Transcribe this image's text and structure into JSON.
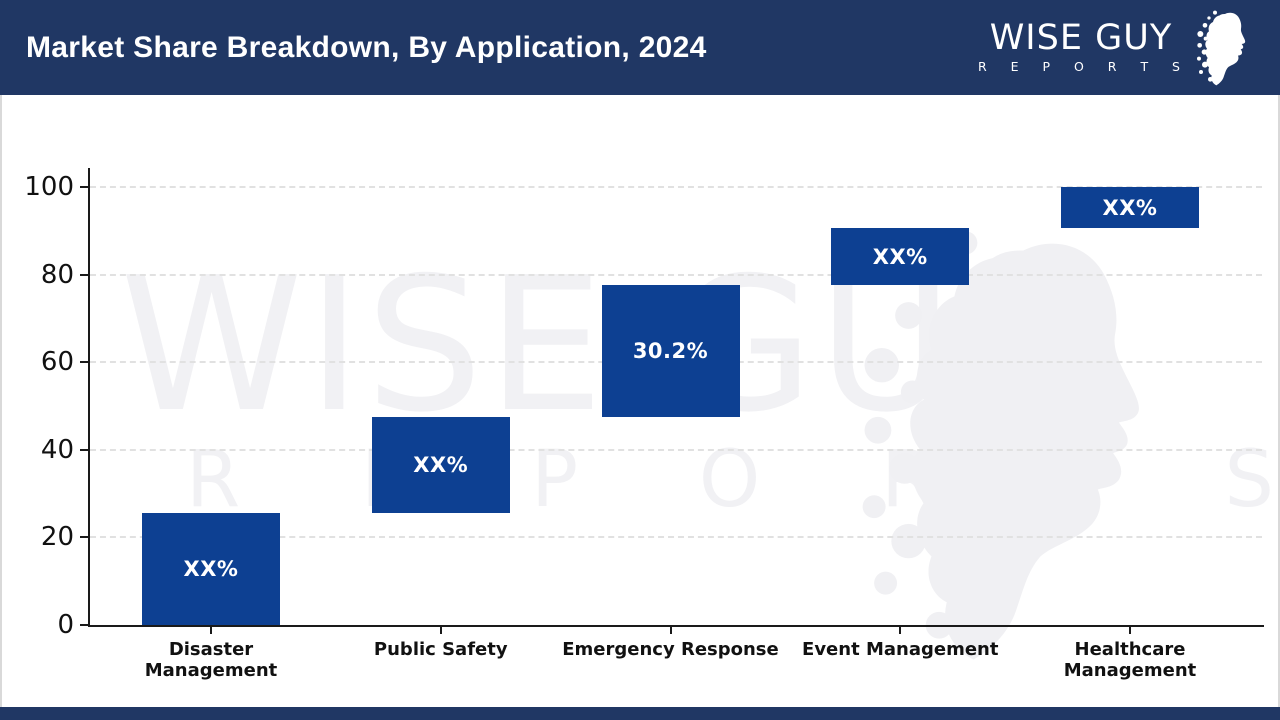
{
  "header": {
    "title": "Market Share Breakdown, By Application, 2024",
    "logo": {
      "line1": "WISE GUY",
      "line2": "R E P O R T S"
    },
    "bg_color": "#203764"
  },
  "watermark": {
    "line1": "WISE GUY",
    "line2": "R E P O R T S"
  },
  "chart_data": {
    "type": "bar",
    "subtype": "waterfall",
    "title": "Market Share Breakdown, By Application, 2024",
    "xlabel": "",
    "ylabel": "",
    "categories": [
      "Disaster\nManagement",
      "Public Safety",
      "Emergency Response",
      "Event Management",
      "Healthcare\nManagement"
    ],
    "segments": [
      {
        "category": "Disaster Management",
        "start": 0,
        "end": 25.6,
        "value": 25.6,
        "label": "XX%"
      },
      {
        "category": "Public Safety",
        "start": 25.6,
        "end": 47.4,
        "value": 21.8,
        "label": "XX%"
      },
      {
        "category": "Emergency Response",
        "start": 47.4,
        "end": 77.6,
        "value": 30.2,
        "label": "30.2%"
      },
      {
        "category": "Event Management",
        "start": 77.6,
        "end": 90.6,
        "value": 13.0,
        "label": "XX%"
      },
      {
        "category": "Healthcare Management",
        "start": 90.6,
        "end": 100,
        "value": 9.4,
        "label": "XX%"
      }
    ],
    "yticks": [
      0,
      20,
      40,
      60,
      80,
      100
    ],
    "ylim": [
      0,
      104
    ],
    "grid": "horizontal dashed",
    "legend": "none",
    "bar_color": "#0d4092",
    "grid_color": "#e1e1e1",
    "watermark_color": "#f1f1f4"
  }
}
